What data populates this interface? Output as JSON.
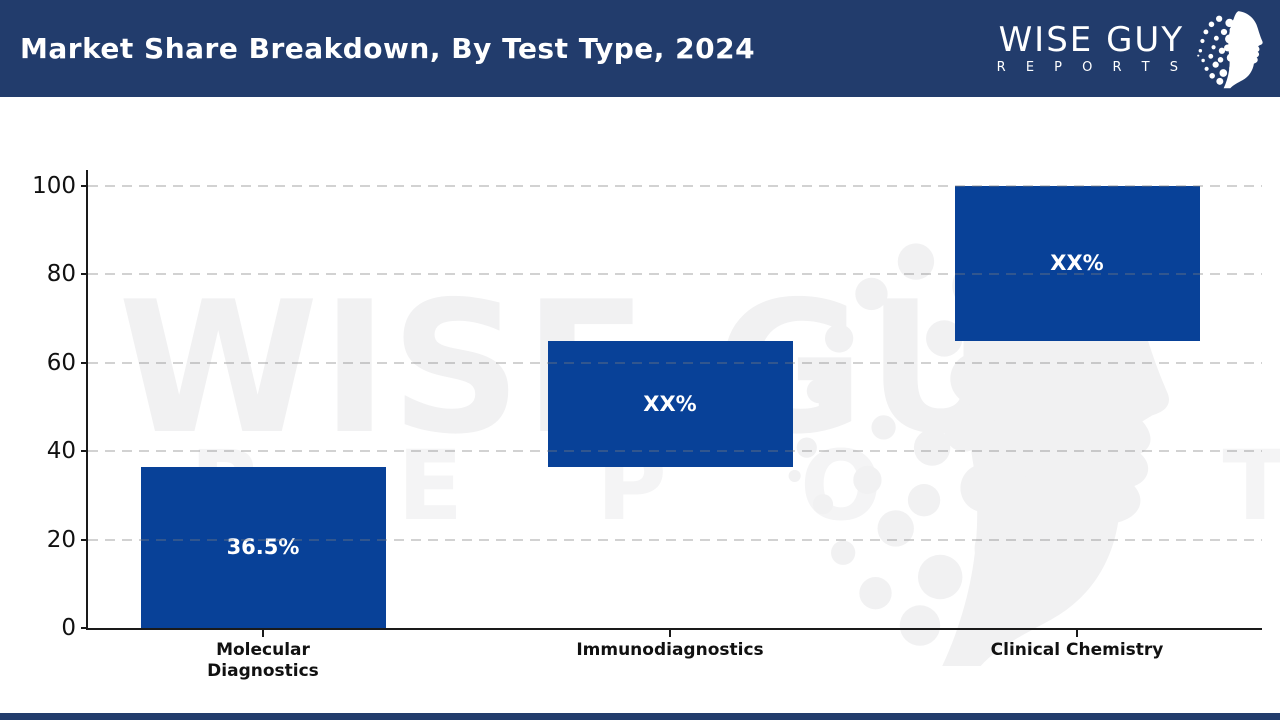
{
  "header": {
    "title": "Market Share Breakdown, By Test Type, 2024",
    "logo": {
      "line1": "WISE GUY",
      "line2": "R E P O R T S"
    }
  },
  "watermark": {
    "line1": "WISE GUY",
    "line2": "R E P O R T S"
  },
  "colors": {
    "navy": "#223c6c",
    "bar_blue": "#084198",
    "axis": "#1a1a1a",
    "value_label": "#ffffff",
    "watermark_gray": "#f1f1f2"
  },
  "chart_data": {
    "type": "bar",
    "subtype": "stacked-waterfall",
    "title": "Market Share Breakdown, By Test Type, 2024",
    "categories": [
      "Molecular Diagnostics",
      "Immunodiagnostics",
      "Clinical Chemistry"
    ],
    "segments": [
      {
        "category": "Molecular Diagnostics",
        "start": 0,
        "end": 36.5,
        "label": "36.5%"
      },
      {
        "category": "Immunodiagnostics",
        "start": 36.5,
        "end": 65,
        "label": "XX%"
      },
      {
        "category": "Clinical Chemistry",
        "start": 65,
        "end": 100,
        "label": "XX%"
      }
    ],
    "ylim": [
      0,
      100
    ],
    "y_ticks": [
      0,
      20,
      40,
      60,
      80,
      100
    ],
    "grid": "dashed-horizontal",
    "legend": "none",
    "bar_color": "#084198",
    "value_label_color": "#ffffff"
  }
}
